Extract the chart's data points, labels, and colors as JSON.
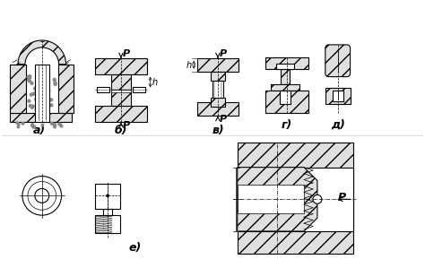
{
  "background_color": "#ffffff",
  "fig_width": 4.74,
  "fig_height": 2.99,
  "dpi": 100,
  "labels": {
    "a": "а)",
    "b": "б)",
    "v": "в)",
    "g": "г)",
    "d": "д)",
    "e": "е)"
  },
  "lc": "#000000",
  "fc_hatch": "#e0e0e0",
  "fc_white": "#ffffff"
}
